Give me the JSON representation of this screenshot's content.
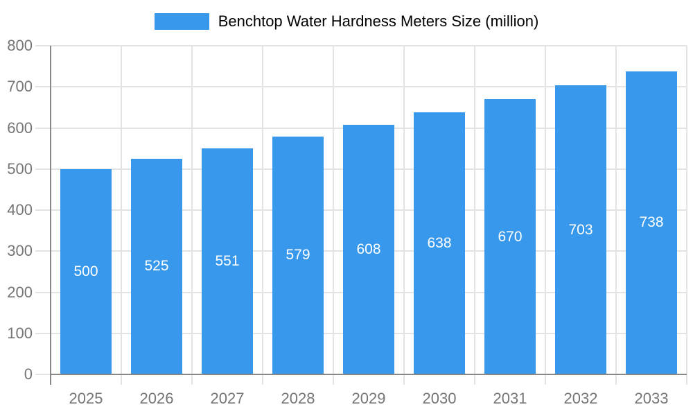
{
  "legend": {
    "position": "top",
    "swatch_icon": "series-color-swatch"
  },
  "colors": {
    "bar": "#3898EC",
    "axis_line": "#888888",
    "grid_line": "#E3E3E3",
    "axis_text": "#757575",
    "legend_text": "#757575",
    "bar_label_text": "#FFFFFF",
    "background": "#FFFFFF"
  },
  "chart_data": {
    "type": "bar",
    "title": "Benchtop Water Hardness Meters Size (million)",
    "categories": [
      "2025",
      "2026",
      "2027",
      "2028",
      "2029",
      "2030",
      "2031",
      "2032",
      "2033"
    ],
    "series": [
      {
        "name": "Benchtop Water Hardness Meters Size (million)",
        "values": [
          500,
          525,
          551,
          579,
          608,
          638,
          670,
          703,
          738
        ]
      }
    ],
    "xlabel": "",
    "ylabel": "",
    "ylim": [
      0,
      800
    ],
    "ytick_interval": 100,
    "ytick_labels": [
      "0",
      "100",
      "200",
      "300",
      "400",
      "500",
      "600",
      "700",
      "800"
    ],
    "grid": true,
    "legend_position": "top",
    "bar_value_labels": "inside-center"
  }
}
